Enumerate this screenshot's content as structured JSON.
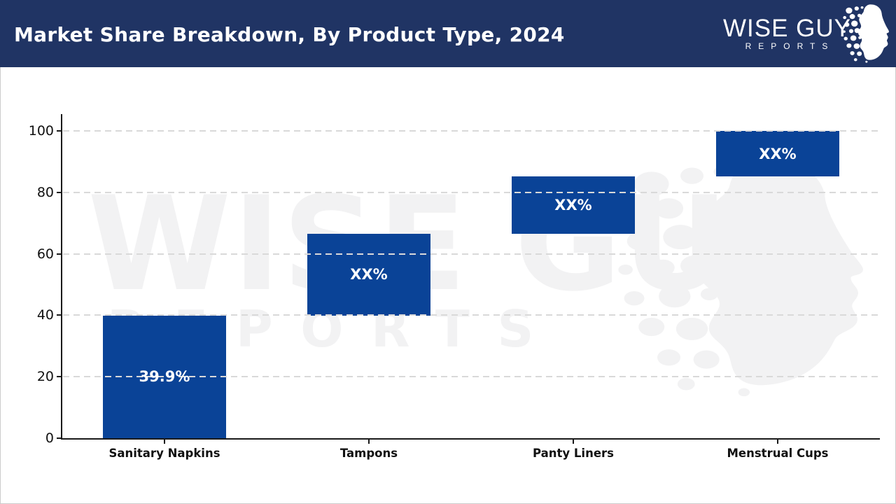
{
  "header": {
    "title": "Market Share Breakdown, By Product Type, 2024",
    "logo": {
      "line1": "WISE GUY",
      "line2": "REPORTS"
    }
  },
  "watermark": {
    "line1": "WISE GUY",
    "line2": "REPORTS"
  },
  "chart_data": {
    "type": "bar",
    "subtype": "waterfall",
    "title": "Market Share Breakdown, By Product Type, 2024",
    "categories": [
      "Sanitary Napkins",
      "Tampons",
      "Panty Liners",
      "Menstrual Cups"
    ],
    "segments": [
      {
        "category": "Sanitary Napkins",
        "start": 0,
        "end": 39.9,
        "label": "39.9%"
      },
      {
        "category": "Tampons",
        "start": 39.9,
        "end": 66.5,
        "label": "XX%"
      },
      {
        "category": "Panty Liners",
        "start": 66.5,
        "end": 85.1,
        "label": "XX%"
      },
      {
        "category": "Menstrual Cups",
        "start": 85.1,
        "end": 100,
        "label": "XX%"
      }
    ],
    "xlabel": "",
    "ylabel": "",
    "ylim": [
      0,
      100
    ],
    "yticks": [
      0,
      20,
      40,
      60,
      80,
      100
    ],
    "grid": "horizontal-dashed",
    "legend": "none"
  },
  "colors": {
    "header_bg": "#203464",
    "bar": "#0a4397",
    "bar_label": "#ffffff",
    "grid": "#d9d9d9",
    "axis": "#1a1a1a",
    "text": "#111111",
    "watermark": "#f2f2f3"
  }
}
